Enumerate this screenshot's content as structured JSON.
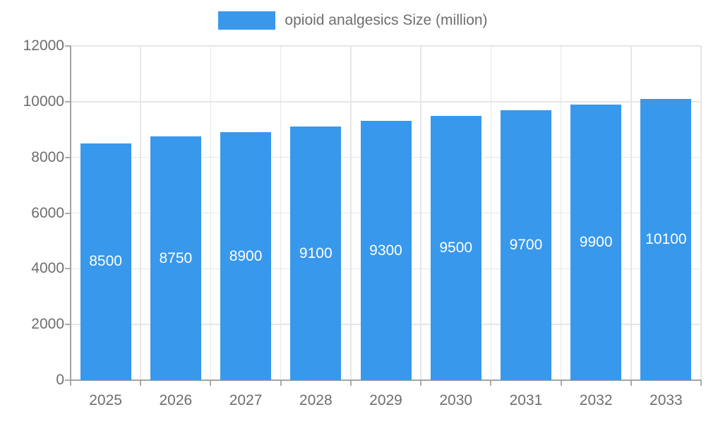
{
  "legend": {
    "label": "opioid analgesics Size (million)"
  },
  "chart_data": {
    "type": "bar",
    "title": "",
    "categories": [
      "2025",
      "2026",
      "2027",
      "2028",
      "2029",
      "2030",
      "2031",
      "2032",
      "2033"
    ],
    "series": [
      {
        "name": "opioid analgesics Size (million)",
        "color": "#3898EC",
        "values": [
          8500,
          8750,
          8900,
          9100,
          9300,
          9500,
          9700,
          9900,
          10100
        ]
      }
    ],
    "value_labels": {
      "shown": true,
      "position": "inside-center",
      "color": "#FFFFFF"
    },
    "xlabel": "",
    "ylabel": "",
    "ylim": [
      0,
      12000
    ],
    "yticks": [
      0,
      2000,
      4000,
      6000,
      8000,
      10000,
      12000
    ],
    "grid": true,
    "legend_position": "top"
  },
  "colors": {
    "bar": "#3898EC",
    "grid_line": "#E6E6E6",
    "axis_line": "#A3A3A3",
    "tick_mark": "#ABABAB",
    "tick_text": "#6E6E6E",
    "bar_value_text": "#FFFFFF",
    "background": "#FFFFFF"
  }
}
